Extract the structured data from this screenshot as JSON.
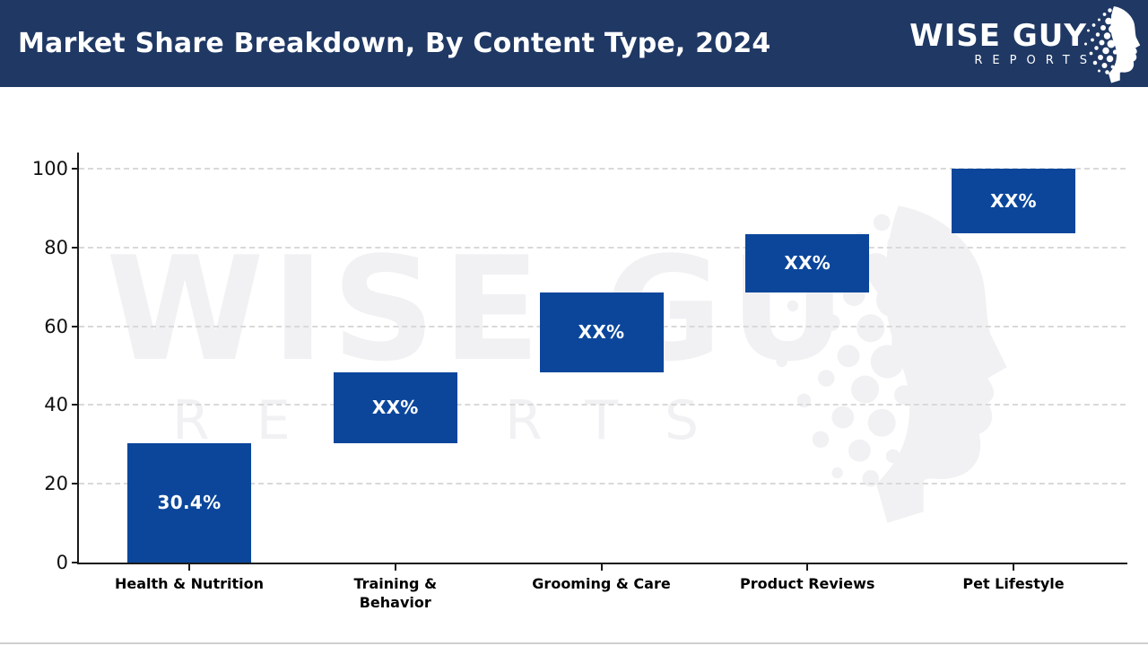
{
  "header": {
    "title": "Market Share Breakdown, By Content Type, 2024",
    "logo": {
      "line1": "WISE GUY",
      "line2": "REPORTS",
      "icon": "head-profile-dots-icon"
    }
  },
  "watermark": {
    "line1": "WISE GUY",
    "line2": "REPORTS"
  },
  "colors": {
    "header_navy": "#1f3864",
    "bar_blue": "#0b469b",
    "grid_gray": "#d9d9d9",
    "watermark_gray": "#f1f1f4"
  },
  "chart_data": {
    "type": "bar",
    "variant": "waterfall",
    "title": "Market Share Breakdown, By Content Type, 2024",
    "xlabel": "",
    "ylabel": "",
    "ylim": [
      0,
      100
    ],
    "yticks": [
      0,
      20,
      40,
      60,
      80,
      100
    ],
    "grid": "horizontal-dashed",
    "legend": "none",
    "bar_color": "#0b469b",
    "label_color": "#ffffff",
    "categories": [
      "Health & Nutrition",
      "Training &\nBehavior",
      "Grooming & Care",
      "Product Reviews",
      "Pet Lifestyle"
    ],
    "bars": [
      {
        "category": "Health & Nutrition",
        "start": 0,
        "end": 30.4,
        "label": "30.4%"
      },
      {
        "category": "Training & Behavior",
        "start": 30.4,
        "end": 48.3,
        "label": "XX%"
      },
      {
        "category": "Grooming & Care",
        "start": 48.3,
        "end": 68.6,
        "label": "XX%"
      },
      {
        "category": "Product Reviews",
        "start": 68.6,
        "end": 83.4,
        "label": "XX%"
      },
      {
        "category": "Pet Lifestyle",
        "start": 83.6,
        "end": 100,
        "label": "XX%"
      }
    ]
  }
}
